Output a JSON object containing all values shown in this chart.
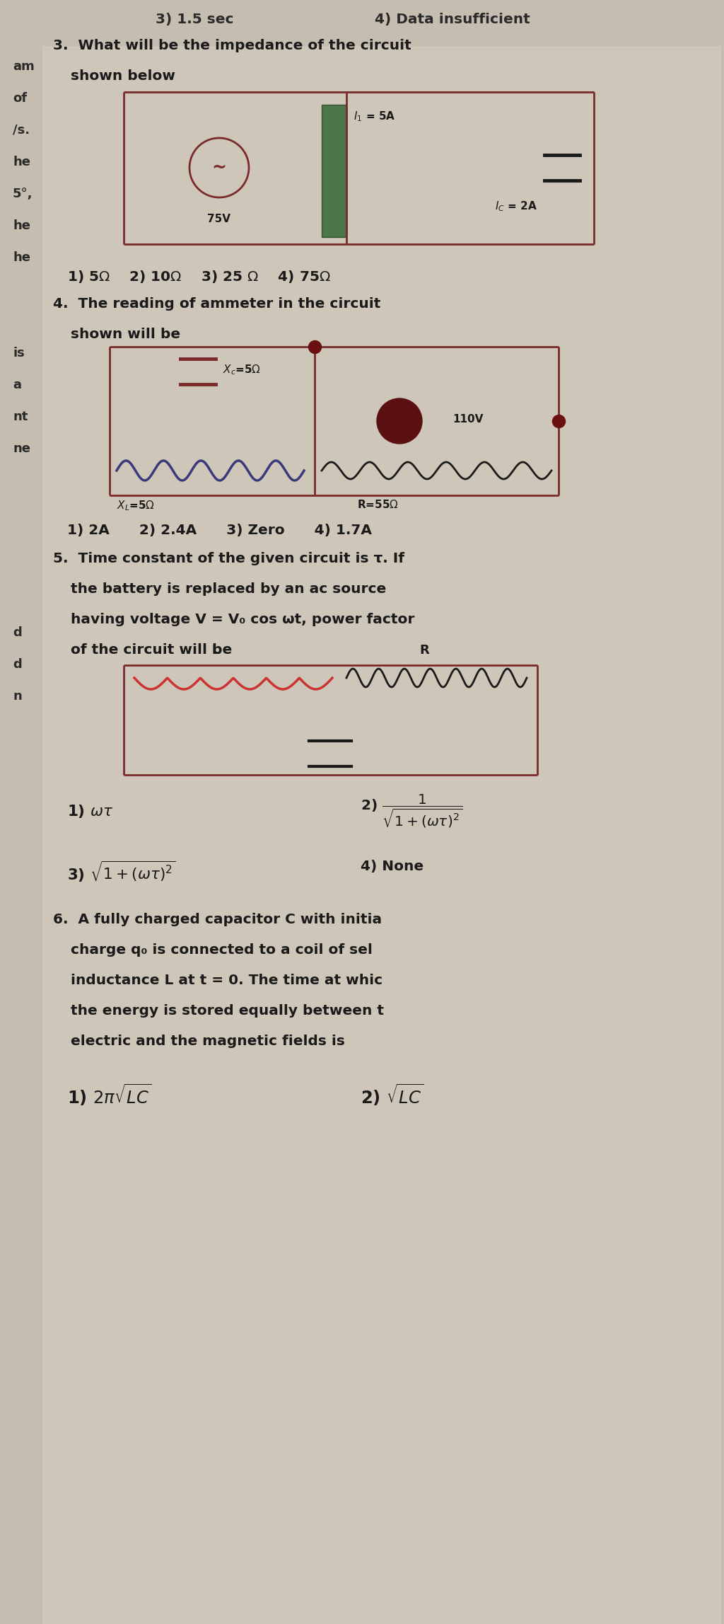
{
  "bg_color": "#c5bdb0",
  "text_color": "#1a1a1a",
  "circuit_color": "#7a2a2a",
  "lw": 1.6,
  "fig_w": 10.24,
  "fig_h": 22.95,
  "dpi": 100,
  "header_left": "3) 1.5 sec",
  "header_right": "4) Data insufficient",
  "q3_l1": "3.  What will be the impedance of the circuit",
  "q3_l2": "shown below",
  "q3_opts": "1) 5Ω    2) 10Ω    3) 25 Ω    4) 75Ω",
  "q4_l1": "4.  The reading of ammeter in the circuit",
  "q4_l2": "shown will be",
  "q4_opts": "1) 2A      2) 2.4A      3) Zero      4) 1.7A",
  "q5_l1": "5.  Time constant of the given circuit is τ. If",
  "q5_l2": "the battery is replaced by an ac source",
  "q5_l3": "having voltage V = V₀ cos ωt, power factor",
  "q5_l4": "of the circuit will be",
  "q6_l1": "6.  A fully charged capacitor C with initia",
  "q6_l2": "charge q₀ is connected to a coil of sel",
  "q6_l3": "inductance L at t = 0. The time at whic",
  "q6_l4": "the energy is stored equally between t",
  "q6_l5": "electric and the magnetic fields is",
  "left_words": [
    "am",
    "of",
    "/s.",
    "he",
    "5°,",
    "he",
    "he",
    "is",
    "a",
    "nt",
    "ne",
    "d",
    "d",
    "n"
  ]
}
